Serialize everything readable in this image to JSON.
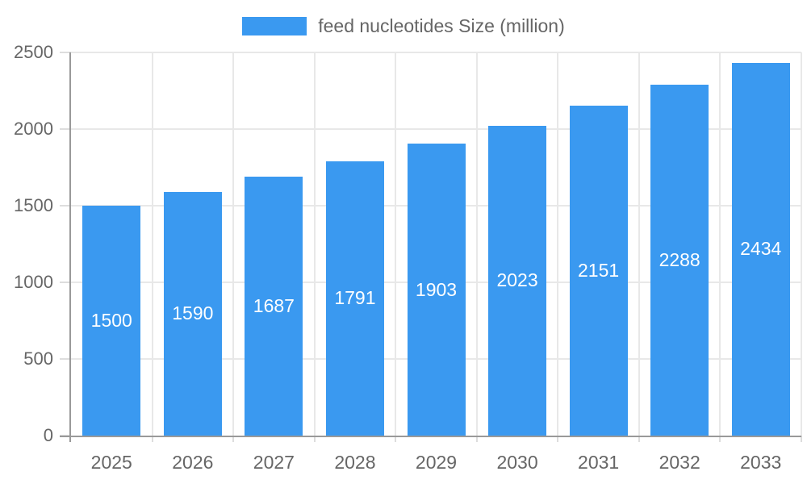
{
  "chart_data": {
    "type": "bar",
    "title": "feed nucleotides Size (million)",
    "legend": {
      "label": "feed nucleotides Size (million)",
      "position": "top"
    },
    "categories": [
      "2025",
      "2026",
      "2027",
      "2028",
      "2029",
      "2030",
      "2031",
      "2032",
      "2033"
    ],
    "series": [
      {
        "name": "feed nucleotides Size (million)",
        "values": [
          1500,
          1590,
          1687,
          1791,
          1903,
          2023,
          2151,
          2288,
          2434
        ]
      }
    ],
    "value_labels": [
      "1500",
      "1590",
      "1687",
      "1791",
      "1903",
      "2023",
      "2151",
      "2288",
      "2434"
    ],
    "xlabel": "",
    "ylabel": "",
    "ylim": [
      0,
      2500
    ],
    "yticks": [
      0,
      500,
      1000,
      1500,
      2000,
      2500
    ],
    "grid": true,
    "colors": {
      "bar": "#3A99F0",
      "grid": "#E8E8E8",
      "axis": "#999999",
      "tick": "#DDDDDD",
      "axis_text": "#666666",
      "value_label_text": "#FFFFFF",
      "background": "#FFFFFF"
    }
  }
}
